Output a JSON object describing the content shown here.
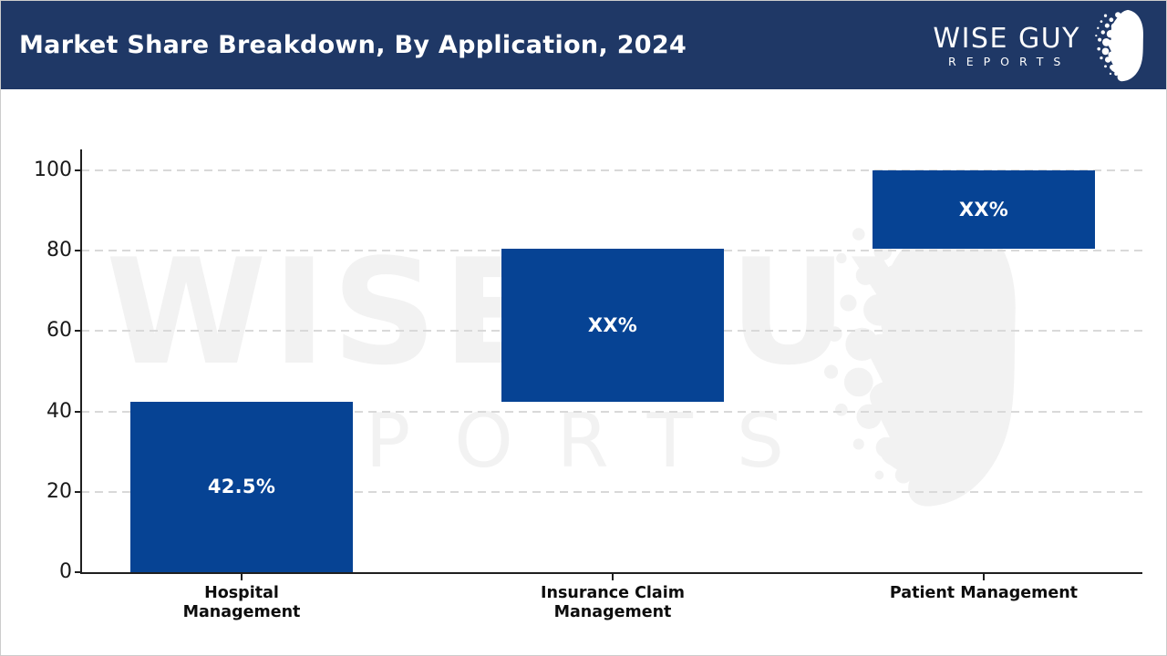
{
  "page": {
    "background": "#ffffff",
    "border_color": "#cccccc"
  },
  "header": {
    "title": "Market Share Breakdown, By Application, 2024",
    "background_color": "#1f3866",
    "text_color": "#ffffff",
    "logo": {
      "brand_line1": "WISE GUY",
      "brand_line2": "REPORTS"
    }
  },
  "watermark": {
    "line1": "WISE GUY",
    "line2": "REPORTS",
    "color": "#f2f2f2"
  },
  "chart_data": {
    "type": "bar",
    "subtype": "stacked-waterfall-market-share",
    "title": "Market Share Breakdown, By Application, 2024",
    "categories": [
      "Hospital Management",
      "Insurance Claim Management",
      "Patient Management"
    ],
    "category_label_lines": [
      [
        "Hospital",
        "Management"
      ],
      [
        "Insurance Claim",
        "Management"
      ],
      [
        "Patient Management"
      ]
    ],
    "segments": [
      {
        "category": "Hospital Management",
        "start": 0,
        "end": 42.5,
        "height": 42.5,
        "label": "42.5%"
      },
      {
        "category": "Insurance Claim Management",
        "start": 42.5,
        "end": 80.5,
        "height": 38.0,
        "label": "XX%"
      },
      {
        "category": "Patient Management",
        "start": 80.5,
        "end": 100,
        "height": 19.5,
        "label": "XX%"
      }
    ],
    "unit": "%",
    "yticks": [
      0,
      20,
      40,
      60,
      80,
      100
    ],
    "ylim": [
      0,
      105
    ],
    "xlabel": "",
    "ylabel": "",
    "legend": "none",
    "grid": {
      "axis": "y",
      "style": "dashed",
      "color": "#d9d9d9"
    },
    "bar_color": "#064394",
    "bar_label_color": "#ffffff",
    "axis_color": "#1f1f1f",
    "tick_label_color": "#1a1a1a"
  }
}
